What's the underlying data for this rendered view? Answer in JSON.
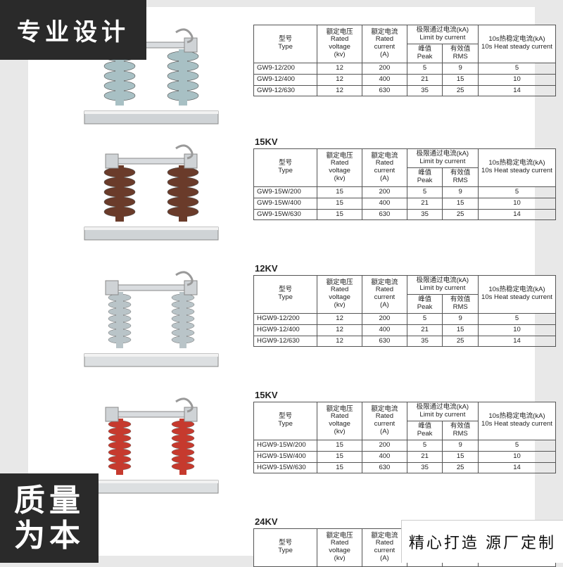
{
  "overlays": {
    "top_badge": "专业设计",
    "bottom_badge_l1": "质量",
    "bottom_badge_l2": "为本",
    "bottom_tag": "精心打造 源厂定制"
  },
  "header": {
    "type_cn": "型号",
    "type_en": "Type",
    "rv_cn": "额定电压",
    "rv_en": "Rated voltage",
    "rv_unit": "(kv)",
    "rc_cn": "额定电流",
    "rc_en": "Rated current",
    "rc_unit": "(A)",
    "limit_cn": "极限通过电流(kA)",
    "limit_en": "Limit by current",
    "peak_cn": "峰值",
    "peak_en": "Peak",
    "rms_cn": "有效值",
    "rms_en": "RMS",
    "heat_cn": "10s热稳定电流(kA)",
    "heat_en": "10s Heat steady current"
  },
  "sections": [
    {
      "title": "",
      "rows": [
        {
          "model": "GW9-12/200",
          "rv": "12",
          "rc": "200",
          "peak": "5",
          "rms": "9",
          "heat": "5"
        },
        {
          "model": "GW9-12/400",
          "rv": "12",
          "rc": "400",
          "peak": "21",
          "rms": "15",
          "heat": "10"
        },
        {
          "model": "GW9-12/630",
          "rv": "12",
          "rc": "630",
          "peak": "35",
          "rms": "25",
          "heat": "14"
        }
      ]
    },
    {
      "title": "15KV",
      "rows": [
        {
          "model": "GW9-15W/200",
          "rv": "15",
          "rc": "200",
          "peak": "5",
          "rms": "9",
          "heat": "5"
        },
        {
          "model": "GW9-15W/400",
          "rv": "15",
          "rc": "400",
          "peak": "21",
          "rms": "15",
          "heat": "10"
        },
        {
          "model": "GW9-15W/630",
          "rv": "15",
          "rc": "630",
          "peak": "35",
          "rms": "25",
          "heat": "14"
        }
      ]
    },
    {
      "title": "12KV",
      "rows": [
        {
          "model": "HGW9-12/200",
          "rv": "12",
          "rc": "200",
          "peak": "5",
          "rms": "9",
          "heat": "5"
        },
        {
          "model": "HGW9-12/400",
          "rv": "12",
          "rc": "400",
          "peak": "21",
          "rms": "15",
          "heat": "10"
        },
        {
          "model": "HGW9-12/630",
          "rv": "12",
          "rc": "630",
          "peak": "35",
          "rms": "25",
          "heat": "14"
        }
      ]
    },
    {
      "title": "15KV",
      "rows": [
        {
          "model": "HGW9-15W/200",
          "rv": "15",
          "rc": "200",
          "peak": "5",
          "rms": "9",
          "heat": "5"
        },
        {
          "model": "HGW9-15W/400",
          "rv": "15",
          "rc": "400",
          "peak": "21",
          "rms": "15",
          "heat": "10"
        },
        {
          "model": "HGW9-15W/630",
          "rv": "15",
          "rc": "630",
          "peak": "35",
          "rms": "25",
          "heat": "14"
        }
      ]
    },
    {
      "title": "24KV",
      "rows": []
    }
  ],
  "layout": {
    "section_tops": [
      25,
      180,
      360,
      540,
      720
    ],
    "prod_tops": [
      30,
      195,
      375,
      555
    ]
  },
  "products": [
    {
      "body": "#a8c0c4",
      "base": "#cfd3d6",
      "type": "porcelain"
    },
    {
      "body": "#6a3b2a",
      "base": "#cfd3d6",
      "type": "porcelain"
    },
    {
      "body": "#b9c4c8",
      "base": "#dcdfe1",
      "type": "polymer"
    },
    {
      "body": "#c63a2e",
      "base": "#dcdfe1",
      "type": "polymer"
    }
  ],
  "style": {
    "page_bg": "#ffffff",
    "body_bg": "#e8e8e8",
    "table_border": "#555555",
    "text": "#222222",
    "badge_bg": "#2a2a2a",
    "badge_fg": "#ffffff"
  }
}
